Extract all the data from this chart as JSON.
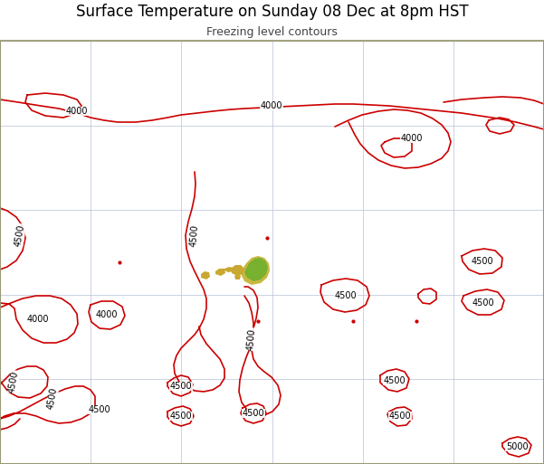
{
  "title": "Surface Temperature on Sunday 08 Dec at 8pm HST",
  "subtitle": "Freezing level contours",
  "title_fontsize": 12,
  "subtitle_fontsize": 9,
  "fig_width": 6.01,
  "fig_height": 5.13,
  "dpi": 100,
  "map_bg": "#cdd5e8",
  "header_bg": "#ffffff",
  "contour_color": "#cc0000",
  "label_fontsize": 7,
  "grid_color": "#b8c0d8",
  "grid_lw": 0.5,
  "contour_lw": 1.2
}
